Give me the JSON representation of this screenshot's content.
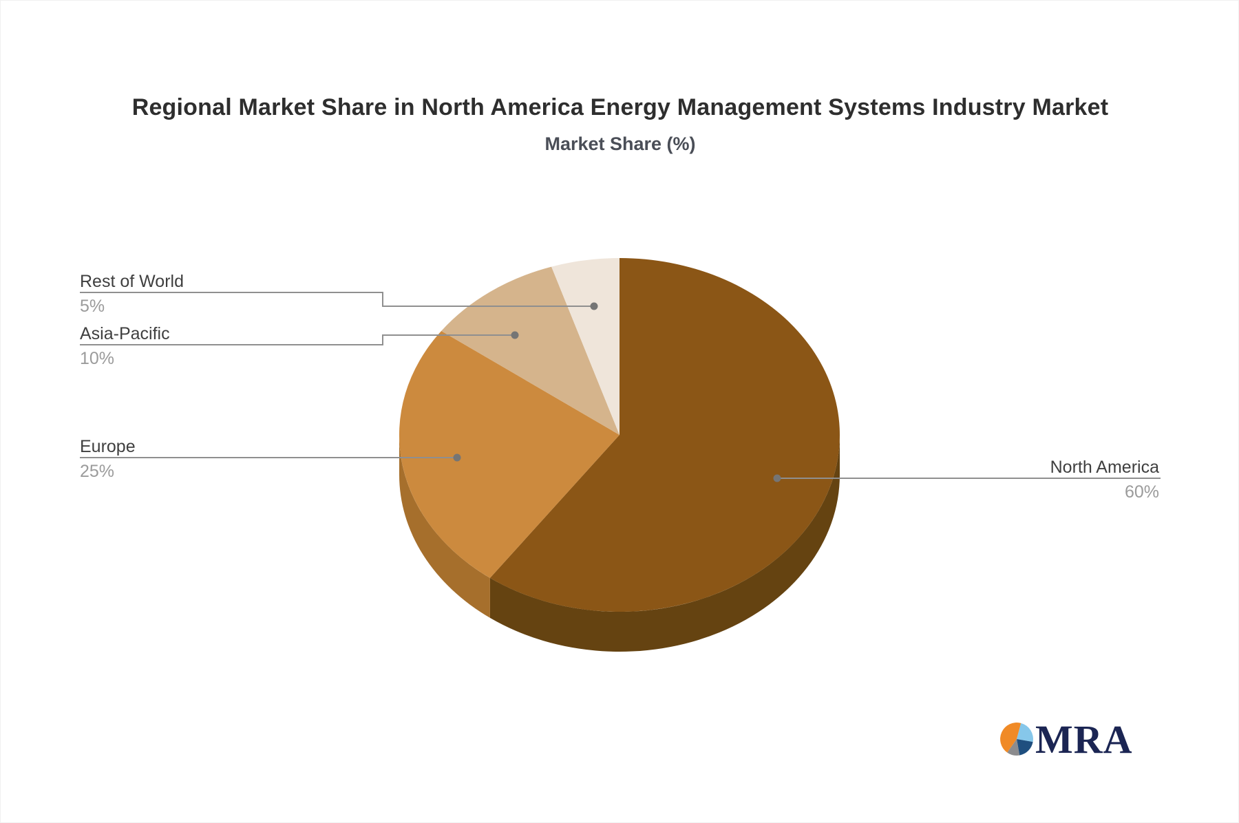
{
  "chart_data": {
    "type": "pie",
    "title": "Regional Market Share in North America Energy Management Systems Industry Market",
    "subtitle": "Market Share (%)",
    "unit": "%",
    "direction": "clockwise",
    "start_angle_deg": 0,
    "legend_position": "none",
    "labels_layout": "callout-lines",
    "slices": [
      {
        "label": "North America",
        "value": 60,
        "pct_label": "60%",
        "color": "#8b5616",
        "side_color": "#654311"
      },
      {
        "label": "Europe",
        "value": 25,
        "pct_label": "25%",
        "color": "#cc8a3e",
        "side_color": "#a66f2c"
      },
      {
        "label": "Asia-Pacific",
        "value": 10,
        "pct_label": "10%",
        "color": "#d5b48c",
        "side_color": "#ab9070"
      },
      {
        "label": "Rest of World",
        "value": 5,
        "pct_label": "5%",
        "color": "#efe5da",
        "side_color": "#bfb7ae"
      }
    ]
  },
  "style": {
    "title_color": "#2e2e2e",
    "subtitle_color": "#4a4e57",
    "label_color": "#3f3f3f",
    "pct_color": "#9b9b9b",
    "line_color": "#8f8f8f",
    "dot_color": "#757575",
    "logo_text_color": "#1b2553"
  },
  "logo": {
    "text": "MRA",
    "pie_colors": {
      "orange": "#f08a26",
      "light_blue": "#86c7ea",
      "navy": "#1f4f7f",
      "gray": "#8c8c8e"
    }
  }
}
